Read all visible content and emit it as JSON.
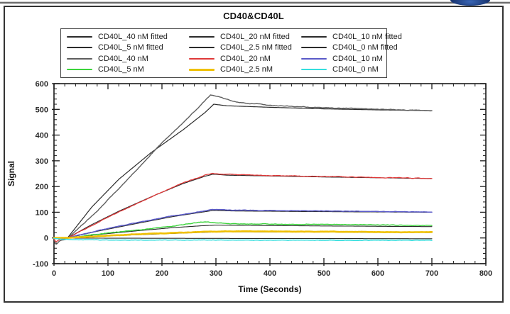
{
  "page": {
    "title": "CD40&CD40L"
  },
  "decorations": {
    "logo_color": "#16316c",
    "top_rule_color": "#6a6a6a"
  },
  "chart_data": {
    "type": "line",
    "title": "CD40&CD40L",
    "xlabel": "Time (Seconds)",
    "ylabel": "Signal",
    "xlim": [
      0,
      800
    ],
    "ylim": [
      -100,
      600
    ],
    "x_major_ticks": [
      0,
      100,
      200,
      300,
      400,
      500,
      600,
      700,
      800
    ],
    "x_minor_step": 20,
    "y_major_ticks": [
      -100,
      0,
      100,
      200,
      300,
      400,
      500,
      600
    ],
    "y_minor_step": 20,
    "grid": false,
    "frame_color": "#1a1a1a",
    "legend_position": "top",
    "phases": {
      "baseline_end_s": 25,
      "association_end_s": 293,
      "data_end_s": 700
    },
    "series": [
      {
        "name": "CD40L_40 nM fitted",
        "color": "#2b2b2b",
        "width": 1.2,
        "noise": 0,
        "points": [
          [
            0,
            0
          ],
          [
            25,
            0
          ],
          [
            70,
            120
          ],
          [
            120,
            228
          ],
          [
            180,
            332
          ],
          [
            240,
            422
          ],
          [
            280,
            488
          ],
          [
            296,
            520
          ],
          [
            320,
            514
          ],
          [
            400,
            508
          ],
          [
            500,
            502
          ],
          [
            600,
            498
          ],
          [
            700,
            495
          ]
        ]
      },
      {
        "name": "CD40L_20 nM fitted",
        "color": "#2b2b2b",
        "width": 1.1,
        "noise": 0,
        "points": [
          [
            0,
            0
          ],
          [
            25,
            0
          ],
          [
            70,
            52
          ],
          [
            120,
            104
          ],
          [
            180,
            160
          ],
          [
            240,
            212
          ],
          [
            280,
            240
          ],
          [
            295,
            248
          ],
          [
            320,
            244
          ],
          [
            400,
            241
          ],
          [
            500,
            237
          ],
          [
            600,
            234
          ],
          [
            700,
            231
          ]
        ]
      },
      {
        "name": "CD40L_10 nM fitted",
        "color": "#2b2b2b",
        "width": 1.1,
        "noise": 0,
        "points": [
          [
            0,
            0
          ],
          [
            25,
            0
          ],
          [
            80,
            26
          ],
          [
            150,
            55
          ],
          [
            220,
            83
          ],
          [
            270,
            99
          ],
          [
            295,
            107
          ],
          [
            330,
            105
          ],
          [
            450,
            103
          ],
          [
            600,
            101
          ],
          [
            700,
            100
          ]
        ]
      },
      {
        "name": "CD40L_5 nM fitted",
        "color": "#2b2b2b",
        "width": 1.1,
        "noise": 0,
        "points": [
          [
            0,
            0
          ],
          [
            25,
            0
          ],
          [
            80,
            13
          ],
          [
            150,
            27
          ],
          [
            220,
            40
          ],
          [
            270,
            47
          ],
          [
            300,
            50
          ],
          [
            400,
            48
          ],
          [
            550,
            46
          ],
          [
            700,
            44
          ]
        ]
      },
      {
        "name": "CD40L_2.5 nM fitted",
        "color": "#2b2b2b",
        "width": 1.1,
        "noise": 0,
        "points": [
          [
            0,
            0
          ],
          [
            25,
            0
          ],
          [
            100,
            8
          ],
          [
            200,
            16
          ],
          [
            280,
            22
          ],
          [
            320,
            24
          ],
          [
            450,
            23
          ],
          [
            600,
            22
          ],
          [
            700,
            21
          ]
        ]
      },
      {
        "name": "CD40L_0 nM fitted",
        "color": "#2b2b2b",
        "width": 1.1,
        "noise": 0,
        "points": [
          [
            0,
            0
          ],
          [
            100,
            -1
          ],
          [
            400,
            -2
          ],
          [
            700,
            -3
          ]
        ]
      },
      {
        "name": "CD40L_40 nM",
        "color": "#5e5e5e",
        "width": 1.4,
        "noise": 1.6,
        "points": [
          [
            0,
            0
          ],
          [
            3,
            -26
          ],
          [
            10,
            -12
          ],
          [
            25,
            -2
          ],
          [
            80,
            105
          ],
          [
            140,
            235
          ],
          [
            200,
            370
          ],
          [
            250,
            470
          ],
          [
            285,
            545
          ],
          [
            290,
            557
          ],
          [
            305,
            548
          ],
          [
            340,
            528
          ],
          [
            400,
            516
          ],
          [
            500,
            506
          ],
          [
            600,
            500
          ],
          [
            700,
            495
          ]
        ]
      },
      {
        "name": "CD40L_20 nM",
        "color": "#df3838",
        "width": 1.3,
        "noise": 1.6,
        "points": [
          [
            0,
            0
          ],
          [
            3,
            -16
          ],
          [
            10,
            -7
          ],
          [
            25,
            -1
          ],
          [
            70,
            49
          ],
          [
            120,
            101
          ],
          [
            180,
            159
          ],
          [
            240,
            215
          ],
          [
            280,
            245
          ],
          [
            293,
            251
          ],
          [
            320,
            247
          ],
          [
            400,
            243
          ],
          [
            500,
            239
          ],
          [
            600,
            235
          ],
          [
            700,
            232
          ]
        ]
      },
      {
        "name": "CD40L_10 nM",
        "color": "#5a5ac8",
        "width": 1.5,
        "noise": 1.1,
        "points": [
          [
            0,
            0
          ],
          [
            25,
            0
          ],
          [
            80,
            28
          ],
          [
            150,
            58
          ],
          [
            220,
            86
          ],
          [
            270,
            102
          ],
          [
            292,
            110
          ],
          [
            330,
            108
          ],
          [
            450,
            106
          ],
          [
            600,
            103
          ],
          [
            700,
            101
          ]
        ]
      },
      {
        "name": "CD40L_5 nM",
        "color": "#3cd43c",
        "width": 1.4,
        "noise": 1.7,
        "points": [
          [
            0,
            0
          ],
          [
            25,
            0
          ],
          [
            80,
            15
          ],
          [
            150,
            30
          ],
          [
            220,
            45
          ],
          [
            260,
            58
          ],
          [
            278,
            63
          ],
          [
            300,
            58
          ],
          [
            330,
            55
          ],
          [
            400,
            54
          ],
          [
            500,
            53
          ],
          [
            600,
            51
          ],
          [
            700,
            48
          ]
        ]
      },
      {
        "name": "CD40L_2.5 nM",
        "color": "#efc000",
        "width": 2.6,
        "noise": 0.9,
        "points": [
          [
            0,
            0
          ],
          [
            25,
            0
          ],
          [
            100,
            9
          ],
          [
            200,
            18
          ],
          [
            280,
            24
          ],
          [
            320,
            26
          ],
          [
            450,
            25
          ],
          [
            600,
            23
          ],
          [
            700,
            22
          ]
        ]
      },
      {
        "name": "CD40L_0 nM",
        "color": "#35dede",
        "width": 1.5,
        "noise": 1.1,
        "points": [
          [
            0,
            -2
          ],
          [
            30,
            -6
          ],
          [
            100,
            -8
          ],
          [
            300,
            -8
          ],
          [
            500,
            -9
          ],
          [
            700,
            -9
          ]
        ]
      }
    ]
  }
}
